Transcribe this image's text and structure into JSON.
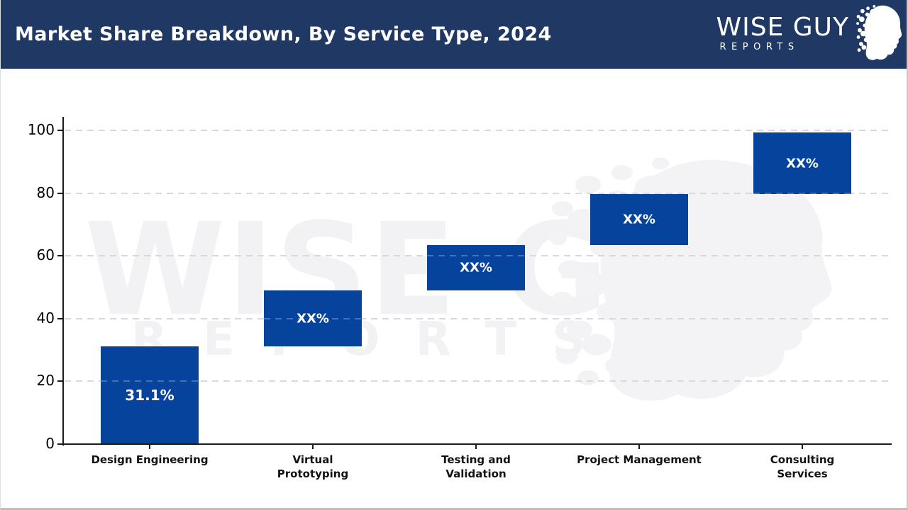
{
  "header": {
    "title": "Market Share Breakdown, By Service Type, 2024",
    "logo": {
      "line1": "WISE GUY",
      "line2": "REPORTS"
    }
  },
  "watermark": {
    "line1": "WISE GUY",
    "line2": "REPORTS"
  },
  "colors": {
    "header_bg": "#203864",
    "bar": "#05439c",
    "axis": "#1a1a1a",
    "grid": "#d9d9d9",
    "bar_label": "#ffffff",
    "tick_label": "#000000",
    "watermark": "#f2f2f4"
  },
  "chart_data": {
    "type": "bar",
    "subtype": "cumulative-waterfall",
    "title": "Market Share Breakdown, By Service Type, 2024",
    "categories": [
      "Design Engineering",
      "Virtual Prototyping",
      "Testing and Validation",
      "Project Management",
      "Consulting Services"
    ],
    "category_lines": [
      [
        "Design Engineering"
      ],
      [
        "Virtual",
        "Prototyping"
      ],
      [
        "Testing and",
        "Validation"
      ],
      [
        "Project Management"
      ],
      [
        "Consulting",
        "Services"
      ]
    ],
    "segments": [
      {
        "category": "Design Engineering",
        "start": 0,
        "end": 31.1,
        "label": "31.1%"
      },
      {
        "category": "Virtual Prototyping",
        "start": 31.1,
        "end": 49.0,
        "label": "XX%"
      },
      {
        "category": "Testing and Validation",
        "start": 49.0,
        "end": 63.4,
        "label": "XX%"
      },
      {
        "category": "Project Management",
        "start": 63.4,
        "end": 79.7,
        "label": "XX%"
      },
      {
        "category": "Consulting Services",
        "start": 79.7,
        "end": 99.3,
        "label": "XX%"
      }
    ],
    "yticks": [
      0,
      20,
      40,
      60,
      80,
      100
    ],
    "ylim": [
      0,
      105
    ],
    "xlabel": "",
    "ylabel": "",
    "grid": "horizontal-dashed",
    "legend": "none",
    "bar_color": "#05439c"
  }
}
